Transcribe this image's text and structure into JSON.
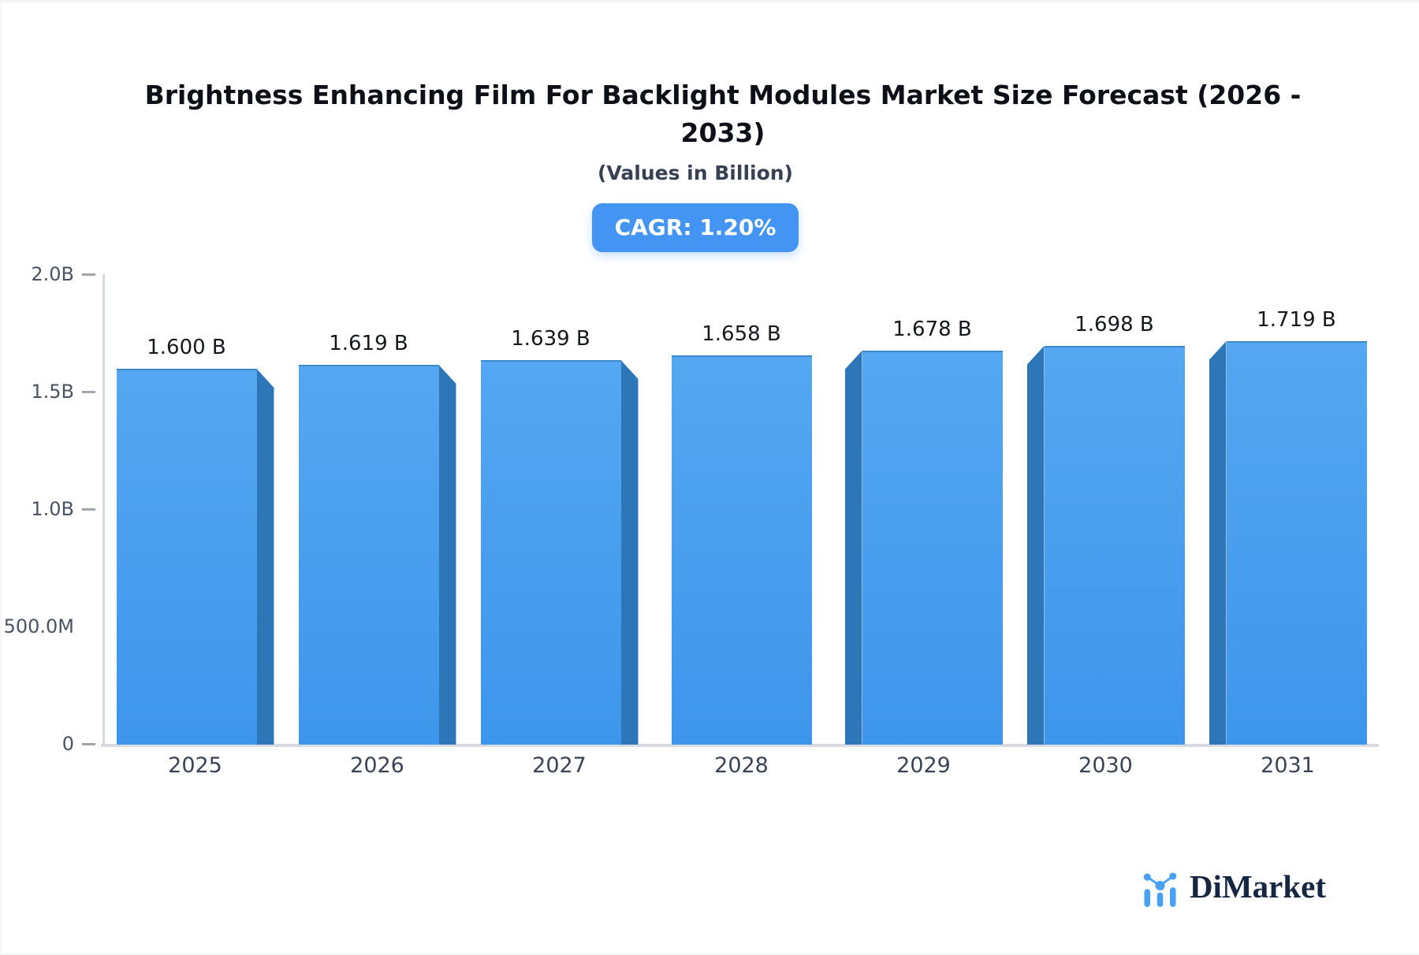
{
  "header": {
    "title_line1": "Brightness Enhancing Film For Backlight Modules Market Size Forecast (2026 -",
    "title_line2": "2033)",
    "subtitle": "(Values in Billion)",
    "cagr_badge": "CAGR: 1.20%"
  },
  "chart_data": {
    "type": "bar",
    "title": "Brightness Enhancing Film For Backlight Modules Market Size Forecast (2026 - 2033)",
    "subtitle": "(Values in Billion)",
    "cagr_percent": 1.2,
    "categories": [
      "2025",
      "2026",
      "2027",
      "2028",
      "2029",
      "2030",
      "2031"
    ],
    "values": [
      1.6,
      1.619,
      1.639,
      1.658,
      1.678,
      1.698,
      1.719
    ],
    "value_labels": [
      "1.600 B",
      "1.619 B",
      "1.639 B",
      "1.658 B",
      "1.678 B",
      "1.698 B",
      "1.719 B"
    ],
    "xlabel": "",
    "ylabel": "",
    "ylim": [
      0,
      2.0
    ],
    "yticks": [
      {
        "label": "2.0B",
        "value": 2.0,
        "tick": true
      },
      {
        "label": "1.5B",
        "value": 1.5,
        "tick": true
      },
      {
        "label": "1.0B",
        "value": 1.0,
        "tick": true
      },
      {
        "label": "500.0M",
        "value": 0.5,
        "tick": false
      },
      {
        "label": "0",
        "value": 0.0,
        "tick": true
      }
    ],
    "grid": false,
    "legend": false,
    "bar_style": "3d-beveled",
    "units": "Billion"
  },
  "colors": {
    "bar_face_top": "#54a7f0",
    "bar_face_bottom": "#3e96ec",
    "bar_side": "#2d77b8",
    "badge_bg": "#4494f3",
    "axis_line": "#d7dadf",
    "tick_mark": "#9fa6ae",
    "logo_blue": "#4aa0f4",
    "brand_navy": "#182741"
  },
  "footer": {
    "brand": "DiMarket"
  }
}
